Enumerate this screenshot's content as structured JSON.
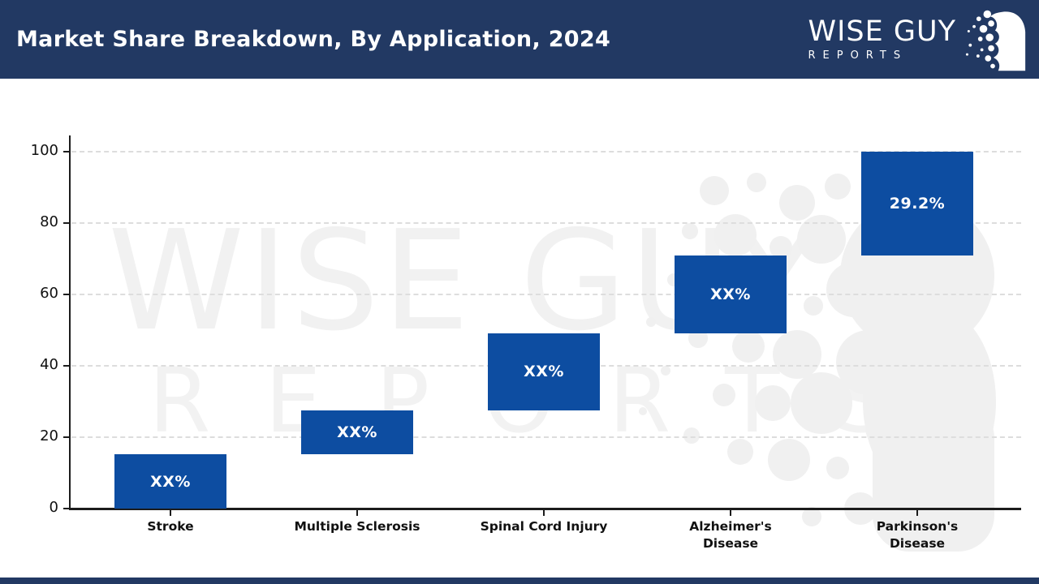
{
  "header": {
    "title": "Market Share Breakdown, By Application, 2024",
    "bg_color": "#223963",
    "logo": {
      "line1": "WISE GUY",
      "line2": "REPORTS"
    }
  },
  "watermark": {
    "line1": "WISE GUY",
    "line2": "R E P O R T S"
  },
  "chart_data": {
    "type": "bar",
    "subtype": "waterfall",
    "title": "Market Share Breakdown, By Application, 2024",
    "categories": [
      "Stroke",
      "Multiple Sclerosis",
      "Spinal Cord Injury",
      "Alzheimer's\nDisease",
      "Parkinson's\nDisease"
    ],
    "segments": [
      {
        "category": "Stroke",
        "start": 0,
        "end": 15.2,
        "label": "XX%"
      },
      {
        "category": "Multiple Sclerosis",
        "start": 15.2,
        "end": 27.6,
        "label": "XX%"
      },
      {
        "category": "Spinal Cord Injury",
        "start": 27.6,
        "end": 49.2,
        "label": "XX%"
      },
      {
        "category": "Alzheimer's Disease",
        "start": 49.2,
        "end": 70.8,
        "label": "XX%"
      },
      {
        "category": "Parkinson's Disease",
        "start": 70.8,
        "end": 100,
        "label": "29.2%"
      }
    ],
    "yticks": [
      "0",
      "20",
      "40",
      "60",
      "80",
      "100"
    ],
    "ylim": [
      0,
      104.5
    ],
    "xlabel": "",
    "ylabel": "",
    "grid": true,
    "legend": false,
    "bar_color": "#0d4da1",
    "gridline_color": "#dddddd",
    "axis_color": "#1c1c1c"
  }
}
